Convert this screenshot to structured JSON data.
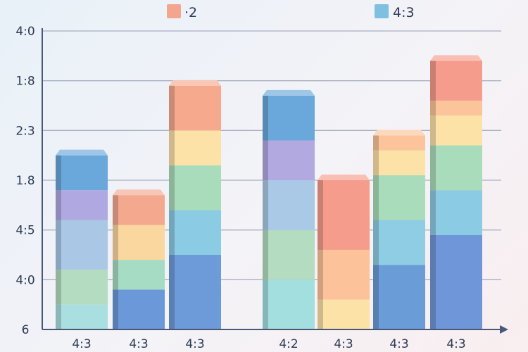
{
  "chart_data": {
    "type": "bar",
    "stacked": true,
    "title": "",
    "xlabel": "",
    "ylabel": "",
    "ylim": [
      0,
      6
    ],
    "grid": true,
    "legend_position": "top",
    "legend": [
      {
        "label": "·2",
        "color": "#f4a58e"
      },
      {
        "label": "4:3",
        "color": "#7fc0e0"
      }
    ],
    "y_tick_labels": [
      "6",
      "4:0",
      "4:5",
      "1.8",
      "2:3",
      "1:8",
      "4:0"
    ],
    "categories": [
      "4:3",
      "4:3",
      "4:3",
      "4:2",
      "4:3",
      "4:3",
      "4:3"
    ],
    "bars": [
      {
        "segments": [
          {
            "value": 0.5,
            "color": "#a9dfe0"
          },
          {
            "value": 0.7,
            "color": "#b4dcc0"
          },
          {
            "value": 1.0,
            "color": "#aac8e6"
          },
          {
            "value": 0.6,
            "color": "#b0a8e0"
          },
          {
            "value": 0.7,
            "color": "#6aa7da"
          }
        ]
      },
      {
        "segments": [
          {
            "value": 0.8,
            "color": "#6b98d8"
          },
          {
            "value": 0.6,
            "color": "#a6dcc4"
          },
          {
            "value": 0.7,
            "color": "#fbd7a0"
          },
          {
            "value": 0.6,
            "color": "#f4a88e"
          }
        ]
      },
      {
        "segments": [
          {
            "value": 1.5,
            "color": "#6d9bda"
          },
          {
            "value": 0.9,
            "color": "#8ccbe4"
          },
          {
            "value": 0.9,
            "color": "#a9dcba"
          },
          {
            "value": 0.7,
            "color": "#fde2a8"
          },
          {
            "value": 0.9,
            "color": "#f6a98d"
          }
        ]
      },
      {
        "segments": [
          {
            "value": 1.0,
            "color": "#a4dfe0"
          },
          {
            "value": 1.0,
            "color": "#b3dcc0"
          },
          {
            "value": 1.0,
            "color": "#aac9e6"
          },
          {
            "value": 0.8,
            "color": "#b2a9e1"
          },
          {
            "value": 0.9,
            "color": "#6aa7da"
          }
        ]
      },
      {
        "segments": [
          {
            "value": 0.6,
            "color": "#fde2a8"
          },
          {
            "value": 1.0,
            "color": "#fcc29a"
          },
          {
            "value": 1.4,
            "color": "#f59c8c"
          }
        ]
      },
      {
        "segments": [
          {
            "value": 1.3,
            "color": "#6a9cd8"
          },
          {
            "value": 0.9,
            "color": "#8fcde4"
          },
          {
            "value": 0.9,
            "color": "#a9dcba"
          },
          {
            "value": 0.5,
            "color": "#fde2a8"
          },
          {
            "value": 0.3,
            "color": "#fbc49a"
          }
        ]
      },
      {
        "segments": [
          {
            "value": 1.9,
            "color": "#6f96d8"
          },
          {
            "value": 0.9,
            "color": "#8ccbe4"
          },
          {
            "value": 0.9,
            "color": "#a9dcba"
          },
          {
            "value": 0.6,
            "color": "#fde2a8"
          },
          {
            "value": 0.3,
            "color": "#fbc49a"
          },
          {
            "value": 0.8,
            "color": "#f59c8c"
          }
        ]
      }
    ]
  }
}
